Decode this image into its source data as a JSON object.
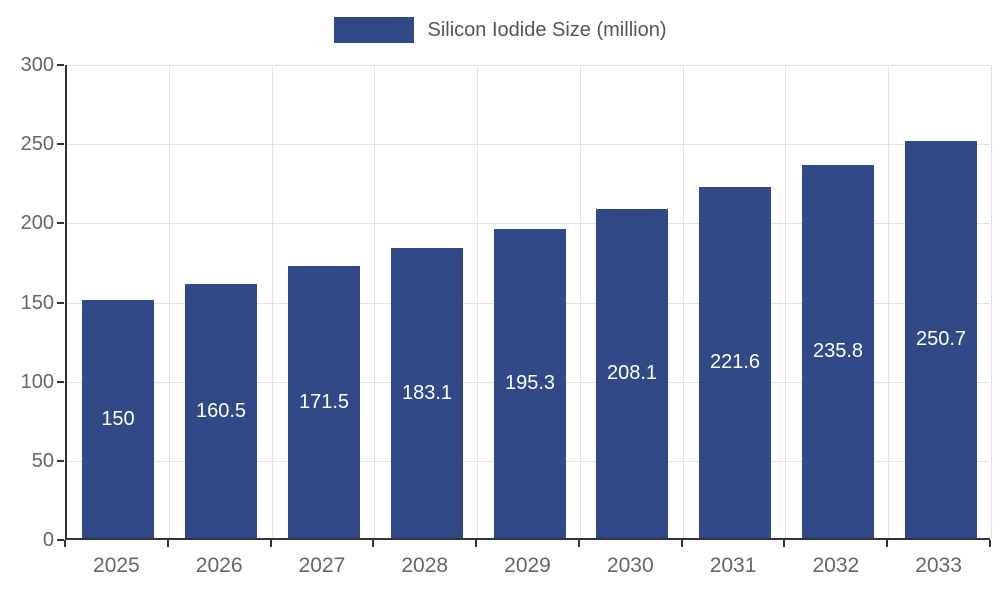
{
  "chart_data": {
    "type": "bar",
    "title": "Silicon Iodide Size (million)",
    "legend": "Silicon Iodide Size (million)",
    "legend_position": "top",
    "categories": [
      "2025",
      "2026",
      "2027",
      "2028",
      "2029",
      "2030",
      "2031",
      "2032",
      "2033"
    ],
    "values": [
      150,
      160.5,
      171.5,
      183.1,
      195.3,
      208.1,
      221.6,
      235.8,
      250.7
    ],
    "value_labels": [
      "150",
      "160.5",
      "171.5",
      "183.1",
      "195.3",
      "208.1",
      "221.6",
      "235.8",
      "250.7"
    ],
    "xlabel": "",
    "ylabel": "",
    "ylim": [
      0,
      300
    ],
    "yticks": [
      0,
      50,
      100,
      150,
      200,
      250,
      300
    ],
    "grid": true,
    "colors": {
      "bar": "#314a87",
      "bar_label": "#ffffff",
      "axis": "#333333",
      "tick_label": "#666666",
      "grid_line": "#e3e3e3",
      "legend_text": "#555555",
      "background": "#ffffff"
    }
  }
}
